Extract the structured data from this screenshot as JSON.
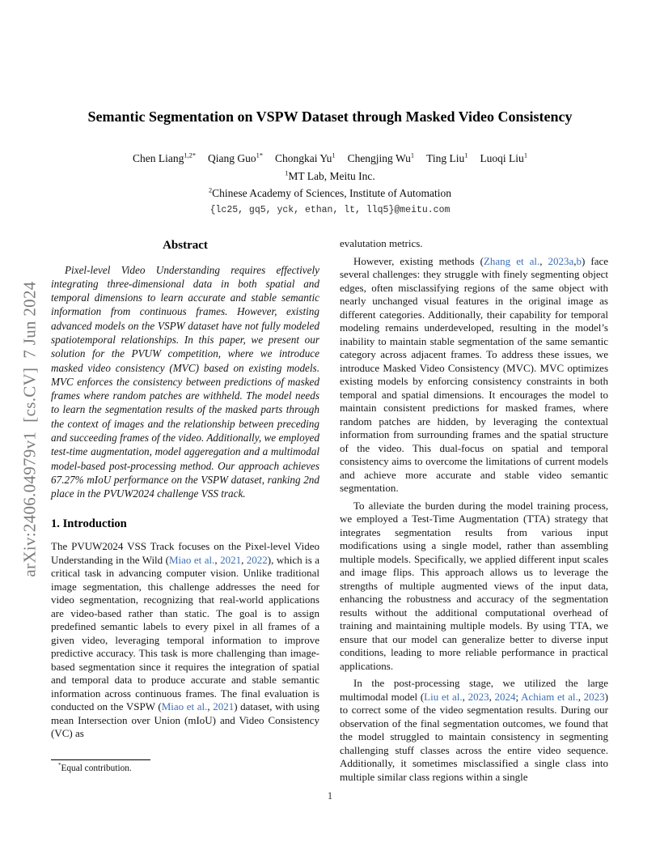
{
  "sidebar": {
    "text": "arXiv:2406.04979v1  [cs.CV]  7 Jun 2024"
  },
  "header": {
    "title": "Semantic Segmentation on VSPW Dataset through Masked Video Consistency",
    "authors_rich": [
      {
        "t": "Chen Liang"
      },
      {
        "t": "1,2*",
        "k": "sup"
      },
      {
        "t": "",
        "k": "sp"
      },
      {
        "t": "Qiang Guo"
      },
      {
        "t": "1*",
        "k": "sup"
      },
      {
        "t": "",
        "k": "sp"
      },
      {
        "t": "Chongkai Yu"
      },
      {
        "t": "1",
        "k": "sup"
      },
      {
        "t": "",
        "k": "sp"
      },
      {
        "t": "Chengjing Wu"
      },
      {
        "t": "1",
        "k": "sup"
      },
      {
        "t": "",
        "k": "sp"
      },
      {
        "t": "Ting Liu"
      },
      {
        "t": "1",
        "k": "sup"
      },
      {
        "t": "",
        "k": "sp"
      },
      {
        "t": "Luoqi Liu"
      },
      {
        "t": "1",
        "k": "sup"
      }
    ],
    "affiliation1_rich": [
      {
        "t": "1",
        "k": "sup"
      },
      {
        "t": "MT Lab, Meitu Inc."
      }
    ],
    "affiliation2_rich": [
      {
        "t": "2",
        "k": "sup"
      },
      {
        "t": "Chinese Academy of Sciences, Institute of Automation"
      }
    ],
    "email": "{lc25, gq5, yck, ethan, lt, llq5}@meitu.com"
  },
  "abstract": {
    "heading": "Abstract",
    "text": "Pixel-level Video Understanding requires effectively integrating three-dimensional data in both spatial and temporal dimensions to learn accurate and stable semantic information from continuous frames. However, existing advanced models on the VSPW dataset have not fully modeled spatiotemporal relationships. In this paper, we present our solution for the PVUW competition, where we introduce masked video consistency (MVC) based on existing models. MVC enforces the consistency between predictions of masked frames where random patches are withheld. The model needs to learn the segmentation results of the masked parts through the context of images and the relationship between preceding and succeeding frames of the video. Additionally, we employed test-time augmentation, model aggeregation and a multimodal model-based post-processing method. Our approach achieves 67.27% mIoU performance on the VSPW dataset, ranking 2nd place in the PVUW2024 challenge VSS track."
  },
  "introduction": {
    "heading": "1. Introduction",
    "para1_rich": [
      {
        "t": "The PVUW2024 VSS Track focuses on the Pixel-level Video Understanding in the Wild ("
      },
      {
        "t": "Miao et al.",
        "k": "link"
      },
      {
        "t": ", "
      },
      {
        "t": "2021",
        "k": "link"
      },
      {
        "t": ", "
      },
      {
        "t": "2022",
        "k": "link"
      },
      {
        "t": "), which is a critical task in advancing computer vision. Unlike traditional image segmentation, this challenge addresses the need for video segmentation, recognizing that real-world applications are video-based rather than static. The goal is to assign predefined semantic labels to every pixel in all frames of a given video, leveraging temporal information to improve predictive accuracy. This task is more challenging than image-based segmentation since it requires the integration of spatial and temporal data to produce accurate and stable semantic information across continuous frames. The final evaluation is conducted on the VSPW ("
      },
      {
        "t": "Miao et al.",
        "k": "link"
      },
      {
        "t": ", "
      },
      {
        "t": "2021",
        "k": "link"
      },
      {
        "t": ") dataset, with using mean Intersection over Union (mIoU) and Video Consistency (VC) as"
      }
    ]
  },
  "right_column": {
    "para0": "evalutation metrics.",
    "para1_rich": [
      {
        "t": "However, existing methods ("
      },
      {
        "t": "Zhang et al.",
        "k": "link"
      },
      {
        "t": ", "
      },
      {
        "t": "2023a",
        "k": "link"
      },
      {
        "t": ","
      },
      {
        "t": "b",
        "k": "link"
      },
      {
        "t": ") face several challenges: they struggle with finely segmenting object edges, often misclassifying regions of the same object with nearly unchanged visual features in the original image as different categories. Additionally, their capability for temporal modeling remains underdeveloped, resulting in the model’s inability to maintain stable segmentation of the same semantic category across adjacent frames. To address these issues, we introduce Masked Video Consistency (MVC). MVC optimizes existing models by enforcing consistency constraints in both temporal and spatial dimensions. It encourages the model to maintain consistent predictions for masked frames, where random patches are hidden, by leveraging the contextual information from surrounding frames and the spatial structure of the video. This dual-focus on spatial and temporal consistency aims to overcome the limitations of current models and achieve more accurate and stable video semantic segmentation."
      }
    ],
    "para2": "To alleviate the burden during the model training process, we employed a Test-Time Augmentation (TTA) strategy that integrates segmentation results from various input modifications using a single model, rather than assembling multiple models. Specifically, we applied different input scales and image flips. This approach allows us to leverage the strengths of multiple augmented views of the input data, enhancing the robustness and accuracy of the segmentation results without the additional computational overhead of training and maintaining multiple models. By using TTA, we ensure that our model can generalize better to diverse input conditions, leading to more reliable performance in practical applications.",
    "para3_rich": [
      {
        "t": "In the post-processing stage, we utilized the large multimodal model ("
      },
      {
        "t": "Liu et al.",
        "k": "link"
      },
      {
        "t": ", "
      },
      {
        "t": "2023",
        "k": "link"
      },
      {
        "t": ", "
      },
      {
        "t": "2024",
        "k": "link"
      },
      {
        "t": "; "
      },
      {
        "t": "Achiam et al.",
        "k": "link"
      },
      {
        "t": ", "
      },
      {
        "t": "2023",
        "k": "link"
      },
      {
        "t": ") to correct some of the video segmentation results. During our observation of the final segmentation outcomes, we found that the model struggled to maintain consistency in segmenting challenging stuff classes across the entire video sequence. Additionally, it sometimes misclassified a single class into multiple similar class regions within a single"
      }
    ]
  },
  "footnote_rich": [
    {
      "t": "*",
      "k": "sup"
    },
    {
      "t": "Equal contribution."
    }
  ],
  "page_number": "1",
  "colors": {
    "citation_link": "#3d6fb5",
    "watermark_gray": "#7c7c7c",
    "body_text": "#161616"
  }
}
